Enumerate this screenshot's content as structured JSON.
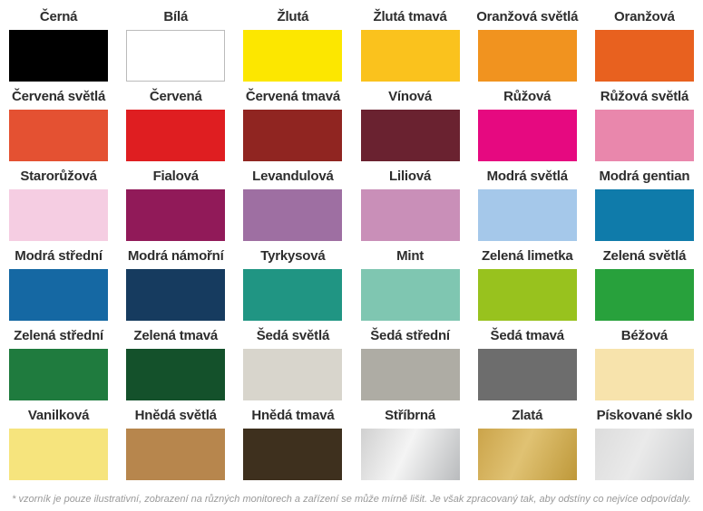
{
  "palette": {
    "swatches": [
      {
        "label": "Černá",
        "color": "#000000"
      },
      {
        "label": "Bílá",
        "color": "#FFFFFF",
        "border": "#BBBBBB"
      },
      {
        "label": "Žlutá",
        "color": "#FCE700"
      },
      {
        "label": "Žlutá tmavá",
        "color": "#FAC21D"
      },
      {
        "label": "Oranžová světlá",
        "color": "#F1931F"
      },
      {
        "label": "Oranžová",
        "color": "#E8611F"
      },
      {
        "label": "Červená světlá",
        "color": "#E45132"
      },
      {
        "label": "Červená",
        "color": "#DF1E21"
      },
      {
        "label": "Červená tmavá",
        "color": "#902521"
      },
      {
        "label": "Vínová",
        "color": "#6A2230"
      },
      {
        "label": "Růžová",
        "color": "#E60980"
      },
      {
        "label": "Růžová světlá",
        "color": "#E987AC"
      },
      {
        "label": "Starorůžová",
        "color": "#F5CDE2"
      },
      {
        "label": "Fialová",
        "color": "#911A59"
      },
      {
        "label": "Levandulová",
        "color": "#9E6FA2"
      },
      {
        "label": "Liliová",
        "color": "#C98FB8"
      },
      {
        "label": "Modrá světlá",
        "color": "#A5C8EA"
      },
      {
        "label": "Modrá gentian",
        "color": "#0F7BAA"
      },
      {
        "label": "Modrá střední",
        "color": "#1568A3"
      },
      {
        "label": "Modrá námořní",
        "color": "#163B5F"
      },
      {
        "label": "Tyrkysová",
        "color": "#209583"
      },
      {
        "label": "Mint",
        "color": "#7FC6B1"
      },
      {
        "label": "Zelená limetka",
        "color": "#98C21E"
      },
      {
        "label": "Zelená světlá",
        "color": "#28A13C"
      },
      {
        "label": "Zelená střední",
        "color": "#1F7B3E"
      },
      {
        "label": "Zelená tmavá",
        "color": "#14512B"
      },
      {
        "label": "Šedá světlá",
        "color": "#D8D5CC"
      },
      {
        "label": "Šedá střední",
        "color": "#AEACA4"
      },
      {
        "label": "Šedá tmavá",
        "color": "#6D6D6D"
      },
      {
        "label": "Béžová",
        "color": "#F7E3AC"
      },
      {
        "label": "Vanilková",
        "color": "#F6E47D"
      },
      {
        "label": "Hnědá světlá",
        "color": "#B7864D"
      },
      {
        "label": "Hnědá tmavá",
        "color": "#3E301E"
      },
      {
        "label": "Stříbrná",
        "gradient": [
          "#D0D0D0",
          "#F4F4F4",
          "#B9BBBD"
        ]
      },
      {
        "label": "Zlatá",
        "gradient": [
          "#CBA44A",
          "#E0C273",
          "#BE9839"
        ]
      },
      {
        "label": "Pískované sklo",
        "gradient": [
          "#DCDCDC",
          "#EAEAEA",
          "#CBCDCF"
        ]
      }
    ]
  },
  "footer": {
    "note": "* vzorník je pouze ilustrativní, zobrazení na různých monitorech a zařízení se může mírně lišit. Je však zpracovaný tak, aby odstíny co nejvíce odpovídaly."
  }
}
